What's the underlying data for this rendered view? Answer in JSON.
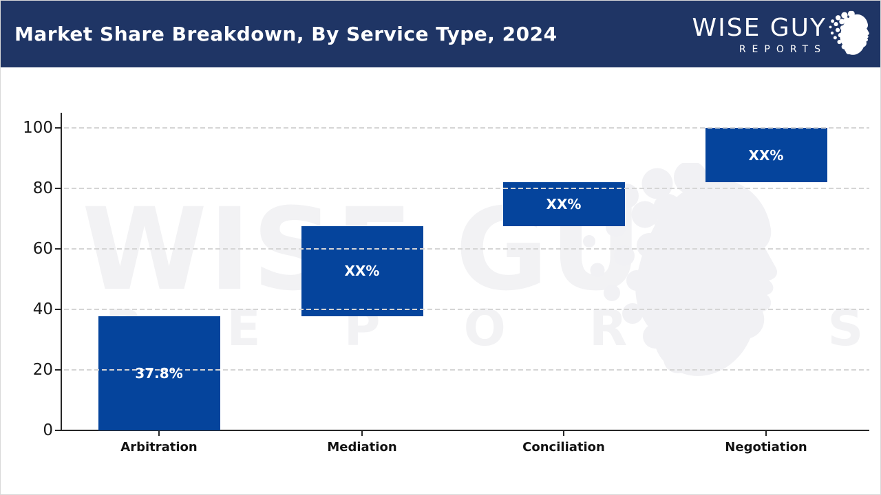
{
  "header": {
    "bg_color": "#1f3565",
    "title": "Market Share Breakdown, By Service Type, 2024",
    "logo": {
      "wordmark": "WISE GUY",
      "subtitle": "REPORTS",
      "face_icon": "dotted-head-profile"
    }
  },
  "watermark": {
    "line1": "WISE GUY",
    "line2": "R E P O R T S",
    "face_icon": "dotted-head-profile",
    "color": "#f2f2f4"
  },
  "chart_data": {
    "type": "bar",
    "subtype": "stacked-waterfall",
    "title": "Market Share Breakdown, By Service Type, 2024",
    "categories": [
      "Arbitration",
      "Mediation",
      "Conciliation",
      "Negotiation"
    ],
    "segments": [
      {
        "category": "Arbitration",
        "start": 0,
        "end": 37.8,
        "label": "37.8%"
      },
      {
        "category": "Mediation",
        "start": 37.8,
        "end": 67.5,
        "label": "XX%"
      },
      {
        "category": "Conciliation",
        "start": 67.5,
        "end": 82,
        "label": "XX%"
      },
      {
        "category": "Negotiation",
        "start": 82,
        "end": 100,
        "label": "XX%"
      }
    ],
    "values": [
      37.8,
      29.7,
      14.5,
      18.0
    ],
    "bar_labels": [
      "37.8%",
      "XX%",
      "XX%",
      "XX%"
    ],
    "xlabel": "",
    "ylabel": "",
    "ylim": [
      0,
      100
    ],
    "yticks": [
      0,
      20,
      40,
      60,
      80,
      100
    ],
    "grid": "horizontal-dashed",
    "legend": "none",
    "bar_color": "#05449c",
    "axis_color": "#262626",
    "grid_color": "#d5d5d5"
  }
}
